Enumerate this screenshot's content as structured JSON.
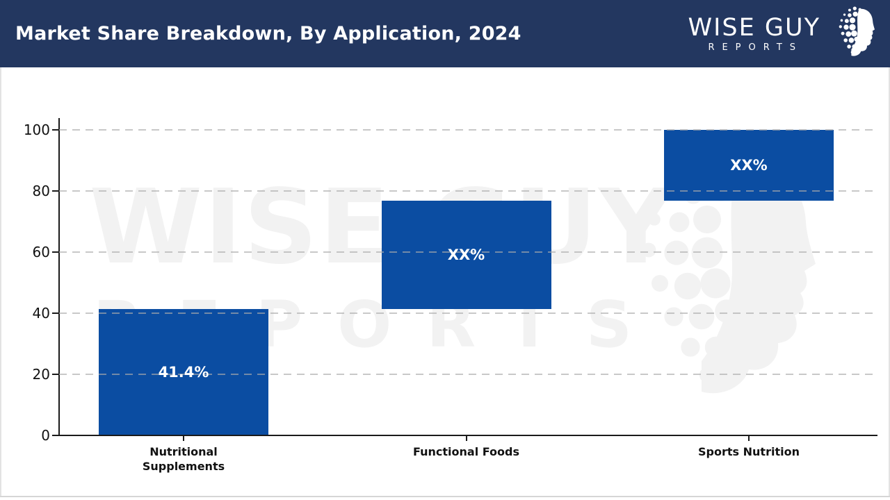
{
  "header": {
    "title": "Market Share Breakdown, By Application, 2024",
    "logo": {
      "line1": "WISE GUY",
      "line2": "REPORTS"
    }
  },
  "watermark": {
    "line1": "WISE GUY",
    "line2": "REPORTS"
  },
  "theme": {
    "header_bg": "#233760",
    "bar_color": "#0b4da2",
    "bar_label_color": "#ffffff",
    "grid_color": "#ababab",
    "watermark_color": "#f2f2f2",
    "axis_color": "#1a1a1a"
  },
  "chart_data": {
    "type": "bar",
    "subtype": "waterfall",
    "title": "Market Share Breakdown, By Application, 2024",
    "xlabel": "",
    "ylabel": "",
    "ylim": [
      0,
      100
    ],
    "yticks": [
      0,
      20,
      40,
      60,
      80,
      100
    ],
    "grid": "dashed-horizontal",
    "legend": "none",
    "categories": [
      "Nutritional Supplements",
      "Functional Foods",
      "Sports Nutrition"
    ],
    "category_lines": [
      [
        "Nutritional",
        "Supplements"
      ],
      [
        "Functional Foods"
      ],
      [
        "Sports Nutrition"
      ]
    ],
    "segments": [
      {
        "category": "Nutritional Supplements",
        "start": 0,
        "end": 41.4,
        "label": "41.4%"
      },
      {
        "category": "Functional Foods",
        "start": 41.4,
        "end": 76.9,
        "label": "XX%"
      },
      {
        "category": "Sports Nutrition",
        "start": 76.9,
        "end": 100,
        "label": "XX%"
      }
    ]
  }
}
